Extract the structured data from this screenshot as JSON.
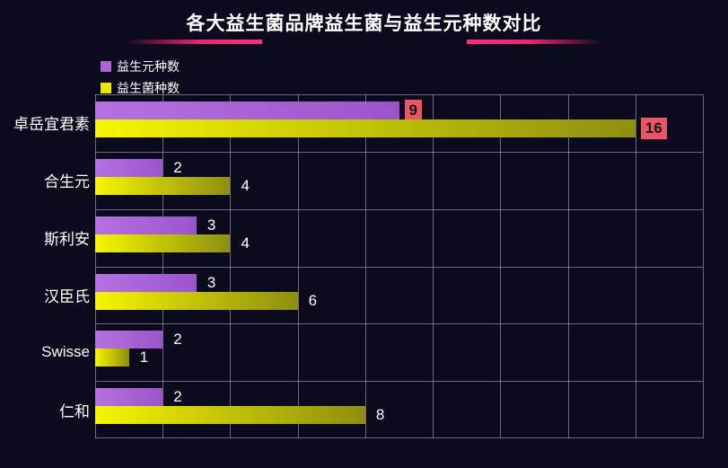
{
  "app": {
    "background": "#0b0b1d",
    "grid_color": "rgba(185,185,198,0.55)"
  },
  "title": {
    "text": "各大益生菌品牌益生菌与益生元种数对比",
    "color": "#ffffff",
    "accent_pink": "#f0256e",
    "accent_pink_bright": "#ff2d7d"
  },
  "legend": {
    "items": [
      {
        "label": "益生元种数",
        "color": "#ab64d8"
      },
      {
        "label": "益生菌种数",
        "color": "#e8e800"
      }
    ]
  },
  "chart_data": {
    "type": "bar",
    "orientation": "horizontal",
    "title": "各大益生菌品牌益生菌与益生元种数对比",
    "categories": [
      "卓岳宜君素",
      "合生元",
      "斯利安",
      "汉臣氏",
      "Swisse",
      "仁和"
    ],
    "series": [
      {
        "name": "益生元种数",
        "values": [
          9,
          2,
          3,
          3,
          2,
          2
        ],
        "color_start": "#b571e0",
        "color_end": "#9c54cc"
      },
      {
        "name": "益生菌种数",
        "values": [
          16,
          4,
          4,
          6,
          1,
          8
        ],
        "color_start": "#f6f600",
        "color_end": "#8e8e10"
      }
    ],
    "xlim": [
      0,
      18
    ],
    "grid_step": 2,
    "grid": true,
    "legend_position": "top-left",
    "value_label_color": "#ffffff",
    "highlight": {
      "category": "卓岳宜君素",
      "badge_bg": "#ed5565",
      "badge_text_color": "#141414"
    }
  }
}
